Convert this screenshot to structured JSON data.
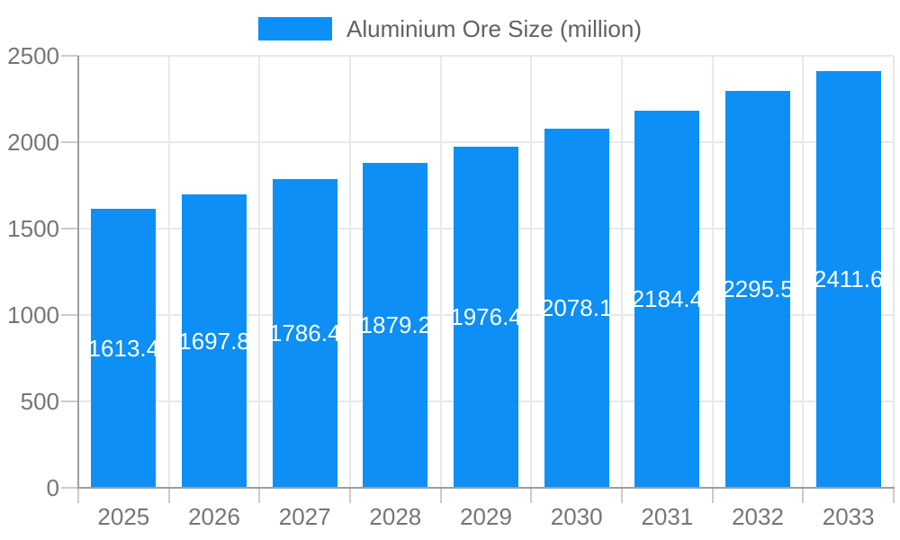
{
  "legend": {
    "label": "Aluminium Ore Size (million)"
  },
  "chart_data": {
    "type": "bar",
    "title": "Aluminium Ore Size (million)",
    "categories": [
      "2025",
      "2026",
      "2027",
      "2028",
      "2029",
      "2030",
      "2031",
      "2032",
      "2033"
    ],
    "series": [
      {
        "name": "Aluminium Ore Size (million)",
        "values": [
          1613.4,
          1697.8,
          1786.4,
          1879.2,
          1976.4,
          2078.1,
          2184.4,
          2295.5,
          2411.6
        ]
      }
    ],
    "xlabel": "",
    "ylabel": "",
    "ylim": [
      0,
      2500
    ],
    "yticks": [
      0,
      500,
      1000,
      1500,
      2000,
      2500
    ],
    "grid": true,
    "legend_position": "top-center",
    "colors": {
      "bar": "#0D8FF5",
      "bar_label": "#ffffff",
      "grid": "#e8e8e8",
      "axis": "#9e9e9e",
      "tick": "#cbcbcb",
      "axis_label": "#757575",
      "legend_text": "#616161"
    }
  }
}
